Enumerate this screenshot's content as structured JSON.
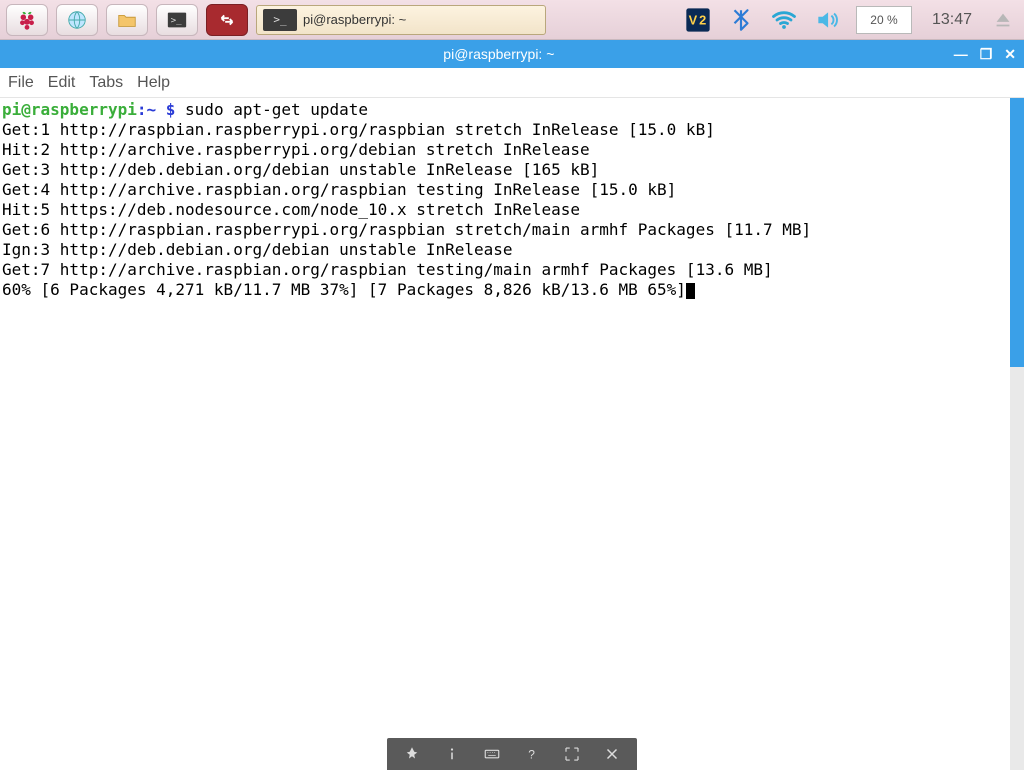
{
  "taskbar": {
    "task_label": "pi@raspberrypi: ~",
    "cpu_text": "20 %",
    "clock": "13:47",
    "icons": {
      "menu": "raspberry-icon",
      "browser": "globe-icon",
      "files": "folder-icon",
      "term": "terminal-icon",
      "share": "arrows-icon",
      "vnc": "vnc-icon",
      "bt": "bluetooth-icon",
      "wifi": "wifi-icon",
      "sound": "speaker-icon",
      "eject": "eject-icon"
    }
  },
  "window": {
    "title": "pi@raspberrypi: ~",
    "menus": {
      "file": "File",
      "edit": "Edit",
      "tabs": "Tabs",
      "help": "Help"
    }
  },
  "terminal": {
    "prompt": {
      "user": "pi",
      "host": "raspberrypi",
      "path": "~",
      "sigil": "$"
    },
    "command": "sudo apt-get update",
    "lines": [
      "Get:1 http://raspbian.raspberrypi.org/raspbian stretch InRelease [15.0 kB]",
      "Hit:2 http://archive.raspberrypi.org/debian stretch InRelease",
      "Get:3 http://deb.debian.org/debian unstable InRelease [165 kB]",
      "Get:4 http://archive.raspbian.org/raspbian testing InRelease [15.0 kB]",
      "Hit:5 https://deb.nodesource.com/node_10.x stretch InRelease",
      "Get:6 http://raspbian.raspberrypi.org/raspbian stretch/main armhf Packages [11.7 MB]",
      "Ign:3 http://deb.debian.org/debian unstable InRelease",
      "Get:7 http://archive.raspbian.org/raspbian testing/main armhf Packages [13.6 MB]"
    ],
    "progress": "60% [6 Packages 4,271 kB/11.7 MB 37%] [7 Packages 8,826 kB/13.6 MB 65%]",
    "scrollbar": {
      "thumb_top_pct": 0,
      "thumb_height_pct": 40
    }
  },
  "colors": {
    "taskbar_bg_top": "#f3e0e6",
    "taskbar_bg_bot": "#e6d0d8",
    "title_bg": "#3aa0e8",
    "term_user": "#3aae3a",
    "term_path": "#2a3bd6",
    "vnc_strip": "#5a5a5a"
  }
}
